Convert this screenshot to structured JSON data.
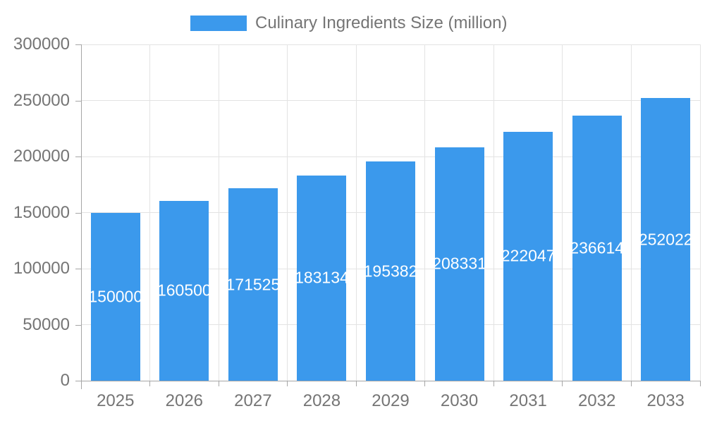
{
  "chart_data": {
    "type": "bar",
    "title": "Culinary Ingredients Size (million)",
    "legend_position": "top",
    "xlabel": "",
    "ylabel": "",
    "categories": [
      "2025",
      "2026",
      "2027",
      "2028",
      "2029",
      "2030",
      "2031",
      "2032",
      "2033"
    ],
    "series": [
      {
        "name": "Culinary Ingredients Size (million)",
        "values": [
          150000,
          160500,
          171525,
          183134,
          195382,
          208331,
          222047,
          236614,
          252022
        ]
      }
    ],
    "value_labels": [
      "150000",
      "160500",
      "171525",
      "183134",
      "195382",
      "208331",
      "222047",
      "236614",
      "252022"
    ],
    "ylim": [
      0,
      300000
    ],
    "yticks": [
      0,
      50000,
      100000,
      150000,
      200000,
      250000,
      300000
    ],
    "ytick_labels": [
      "0",
      "50000",
      "100000",
      "150000",
      "200000",
      "250000",
      "300000"
    ],
    "grid": true
  },
  "colors": {
    "bar_fill": "#3B99EC",
    "bar_label_text": "#FFFFFF",
    "axis_text": "#757575",
    "axis_line": "#A6A6A6",
    "grid_line": "#E3E3E3",
    "background": "#FFFFFF"
  }
}
